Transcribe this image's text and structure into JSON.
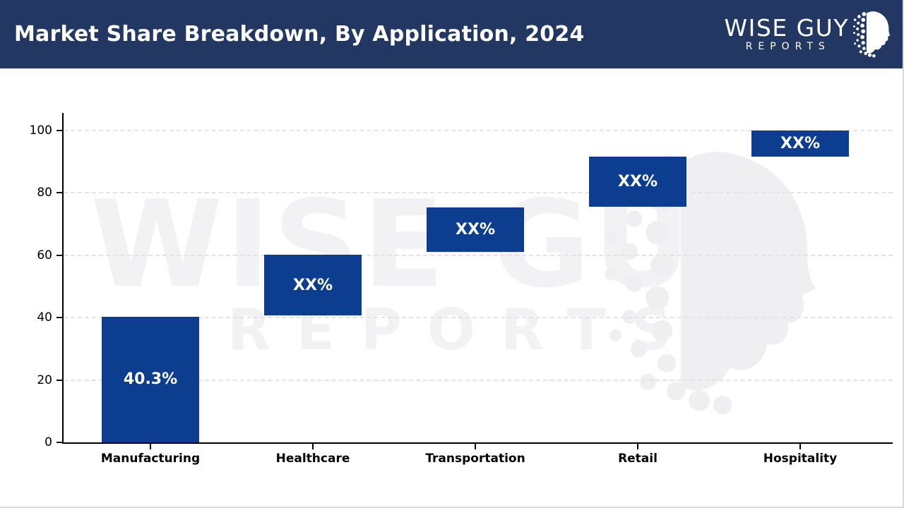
{
  "header": {
    "title": "Market Share Breakdown, By Application, 2024",
    "logo": {
      "line1": "WISE GUY",
      "line2": "REPORTS"
    }
  },
  "watermark": {
    "line1": "WISE GUY",
    "line2": "REPORTS"
  },
  "chart_data": {
    "type": "bar",
    "subtype": "waterfall",
    "title": "Market Share Breakdown, By Application, 2024",
    "categories": [
      "Manufacturing",
      "Healthcare",
      "Transportation",
      "Retail",
      "Hospitality"
    ],
    "segments": [
      {
        "category": "Manufacturing",
        "start": 0,
        "end": 40.3,
        "label": "40.3%"
      },
      {
        "category": "Healthcare",
        "start": 40.7,
        "end": 60.1,
        "label": "XX%"
      },
      {
        "category": "Transportation",
        "start": 61.2,
        "end": 75.4,
        "label": "XX%"
      },
      {
        "category": "Retail",
        "start": 75.6,
        "end": 91.6,
        "label": "XX%"
      },
      {
        "category": "Hospitality",
        "start": 91.7,
        "end": 100.0,
        "label": "XX%"
      }
    ],
    "xlabel": "",
    "ylabel": "",
    "yticks": [
      0,
      20,
      40,
      60,
      80,
      100
    ],
    "ylim": [
      0,
      105.7
    ],
    "grid": "horizontal-dashed",
    "legend": "none",
    "bar_color": "#0d3d8f",
    "bar_label_color": "#ffffff"
  },
  "colors": {
    "header_bg": "#223863",
    "bar": "#0d3d8f",
    "grid": "#e3e3e5",
    "axis": "#000000",
    "watermark": "#f2f2f4"
  }
}
